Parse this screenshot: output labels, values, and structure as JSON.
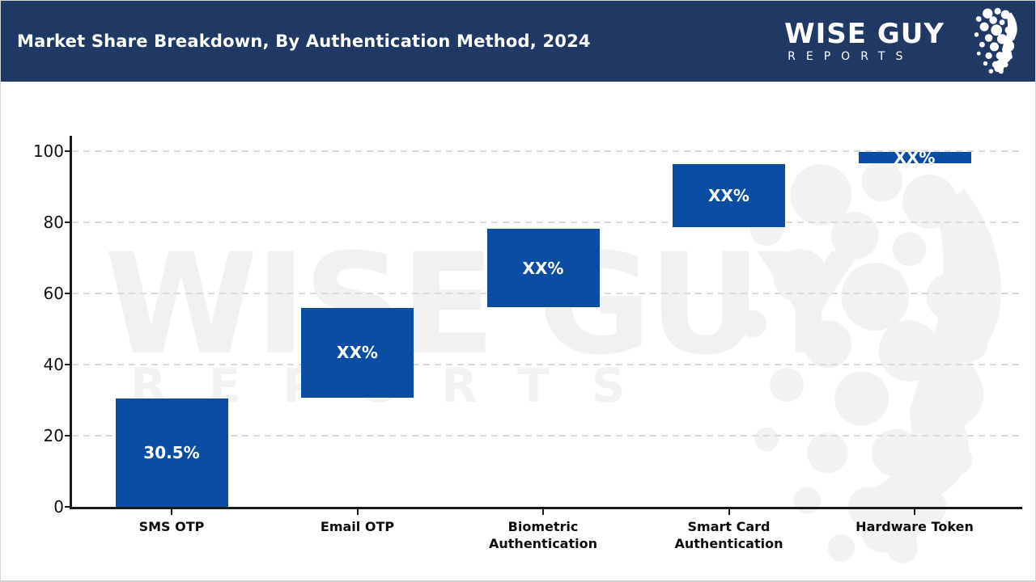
{
  "header": {
    "background": "#1f3864",
    "title": "Market Share Breakdown, By Authentication Method, 2024",
    "logo": {
      "line1": "WISE GUY",
      "line2": "REPORTS",
      "icon": "dotted-head-logo"
    }
  },
  "watermark": {
    "line1": "WISE GUY",
    "line2": "REPORTS"
  },
  "chart_data": {
    "type": "bar",
    "subtype": "waterfall",
    "title": "",
    "xlabel": "",
    "ylabel": "",
    "categories": [
      "SMS OTP",
      "Email OTP",
      "Biometric Authentication",
      "Smart Card Authentication",
      "Hardware Token"
    ],
    "bars": [
      {
        "category": "SMS OTP",
        "start": 0,
        "end": 30.5,
        "label": "30.5%"
      },
      {
        "category": "Email OTP",
        "start": 30.7,
        "end": 55.9,
        "label": "XX%"
      },
      {
        "category": "Biometric Authentication",
        "start": 56.1,
        "end": 78.2,
        "label": "XX%"
      },
      {
        "category": "Smart Card Authentication",
        "start": 78.6,
        "end": 96.4,
        "label": "XX%"
      },
      {
        "category": "Hardware Token",
        "start": 96.6,
        "end": 99.8,
        "label": "XX%"
      }
    ],
    "bar_color": "#0b4da2",
    "bar_label_color": "#ffffff",
    "yticks": [
      0,
      20,
      40,
      60,
      80,
      100
    ],
    "ylim": [
      0,
      105
    ],
    "grid": "horizontal-dashed",
    "gridline_color": "#dadada",
    "legend": "none"
  }
}
